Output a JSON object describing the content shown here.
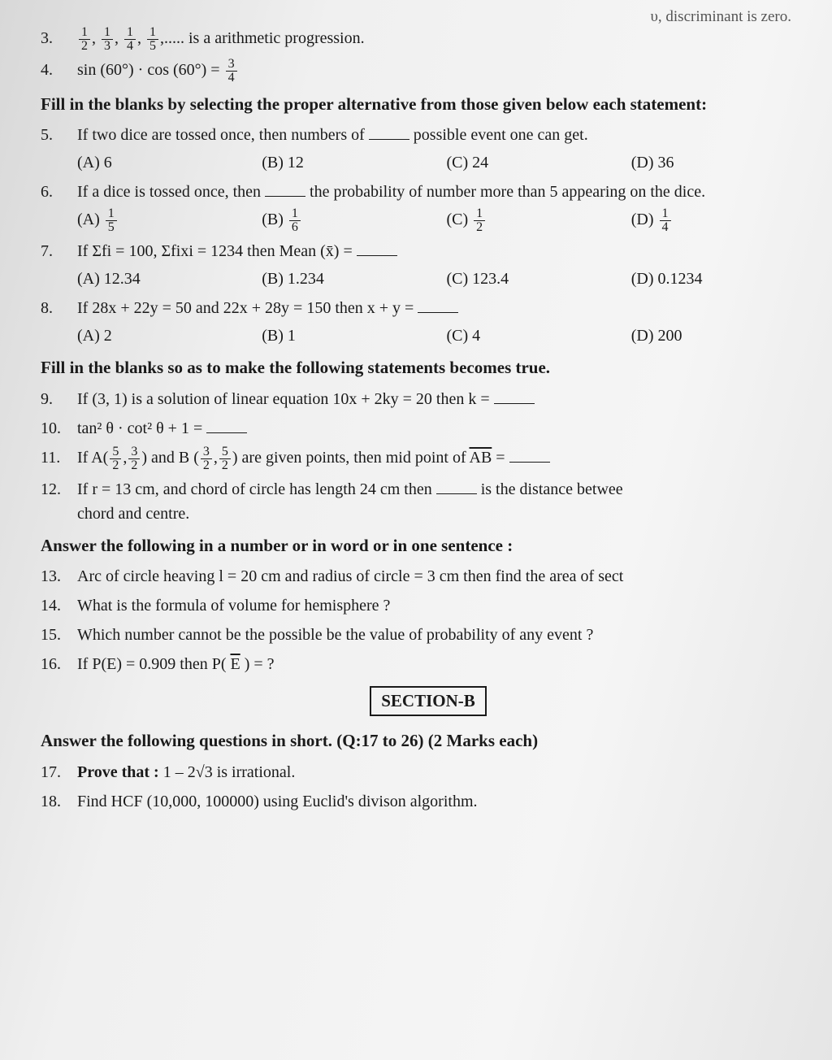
{
  "top_partial": "υ, discriminant is zero.",
  "q3": {
    "num": "3.",
    "text_suffix": ",..... is a arithmetic progression.",
    "fracs": [
      [
        "1",
        "2"
      ],
      [
        "1",
        "3"
      ],
      [
        "1",
        "4"
      ],
      [
        "1",
        "5"
      ]
    ]
  },
  "q4": {
    "num": "4.",
    "lhs": "sin (60°) · cos (60°) = ",
    "frac": [
      "3",
      "4"
    ]
  },
  "head1": "Fill in the blanks by selecting the proper alternative from those given below each statement:",
  "q5": {
    "num": "5.",
    "text_pre": "If two dice are tossed once, then numbers of ",
    "text_post": " possible event one can get.",
    "opts": {
      "a": "(A) 6",
      "b": "(B) 12",
      "c": "(C) 24",
      "d": "(D) 36"
    }
  },
  "q6": {
    "num": "6.",
    "text_pre": "If a dice is tossed once, then ",
    "text_post": " the probability of number more than 5 appearing on the dice.",
    "opts_label": {
      "a": "(A) ",
      "b": "(B) ",
      "c": "(C) ",
      "d": "(D) "
    },
    "fracs": {
      "a": [
        "1",
        "5"
      ],
      "b": [
        "1",
        "6"
      ],
      "c": [
        "1",
        "2"
      ],
      "d": [
        "1",
        "4"
      ]
    }
  },
  "q7": {
    "num": "7.",
    "text": "If Σfi = 100, Σfixi = 1234 then Mean (x̄) = ",
    "opts": {
      "a": "(A) 12.34",
      "b": "(B) 1.234",
      "c": "(C) 123.4",
      "d": "(D) 0.1234"
    }
  },
  "q8": {
    "num": "8.",
    "text": "If  28x + 22y = 50  and  22x + 28y = 150  then  x + y = ",
    "opts": {
      "a": "(A) 2",
      "b": "(B) 1",
      "c": "(C) 4",
      "d": "(D) 200"
    }
  },
  "head2": "Fill in the blanks so as to make the following statements becomes true.",
  "q9": {
    "num": "9.",
    "text": "If (3, 1) is a solution of linear equation 10x + 2ky = 20 then k = "
  },
  "q10": {
    "num": "10.",
    "text": "tan² θ · cot² θ + 1 = "
  },
  "q11": {
    "num": "11.",
    "pre": "If A(",
    "mid": ") and B (",
    "post": ") are given points, then mid point of ",
    "ab": "AB",
    "eq": " = ",
    "fracs": {
      "a1": [
        "5",
        "2"
      ],
      "a2": [
        "3",
        "2"
      ],
      "b1": [
        "3",
        "2"
      ],
      "b2": [
        "5",
        "2"
      ]
    }
  },
  "q12": {
    "num": "12.",
    "pre": "If r = 13 cm, and chord of circle has length 24 cm then ",
    "post": " is the distance betwee",
    "line2": "chord and centre."
  },
  "head3": "Answer the following in a number or in word or in one sentence :",
  "q13": {
    "num": "13.",
    "text": "Arc of circle heaving l = 20 cm and radius of circle = 3 cm then find the area of sect"
  },
  "q14": {
    "num": "14.",
    "text": "What is the formula of volume for hemisphere ?"
  },
  "q15": {
    "num": "15.",
    "text": "Which number cannot be the possible be the value of probability of any event ?"
  },
  "q16": {
    "num": "16.",
    "pre": "If P(E) = 0.909 then P( ",
    "e": "E",
    "post": " ) = ?"
  },
  "section_b": "SECTION-B",
  "head4": "Answer the following questions in short. (Q:17 to 26)  (2 Marks each)",
  "q17": {
    "num": "17.",
    "bold": "Prove that : ",
    "text": "1 – 2√3  is irrational."
  },
  "q18": {
    "num": "18.",
    "text": "Find HCF (10,000, 100000) using Euclid's divison algorithm."
  }
}
